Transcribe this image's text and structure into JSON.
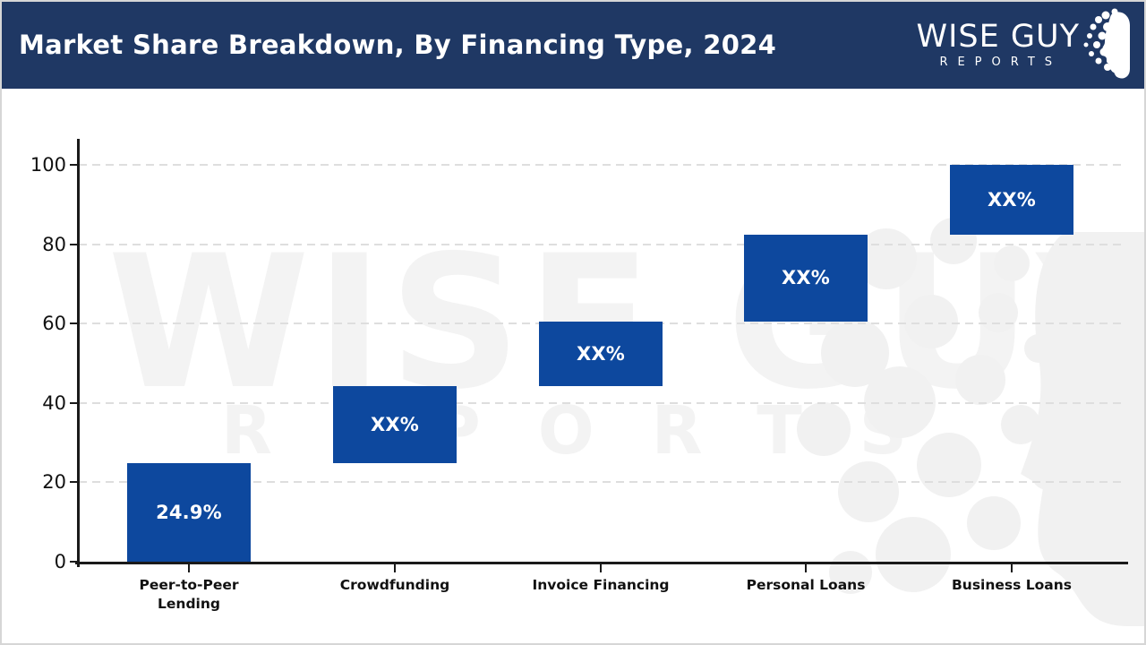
{
  "header": {
    "title": "Market Share Breakdown, By Financing Type, 2024",
    "logo": {
      "line1": "WISE GUY",
      "line2": "REPORTS"
    }
  },
  "watermark": {
    "line1": "WISE GUY",
    "line2": "REPORTS"
  },
  "chart_data": {
    "type": "bar",
    "subtype": "waterfall",
    "title": "Market Share Breakdown, By Financing Type, 2024",
    "categories": [
      "Peer-to-Peer Lending",
      "Crowdfunding",
      "Invoice Financing",
      "Personal Loans",
      "Business Loans"
    ],
    "segments": [
      {
        "category": "Peer-to-Peer Lending",
        "start": 0,
        "end": 24.9,
        "label": "24.9%"
      },
      {
        "category": "Crowdfunding",
        "start": 24.9,
        "end": 44.2,
        "label": "XX%"
      },
      {
        "category": "Invoice Financing",
        "start": 44.2,
        "end": 60.6,
        "label": "XX%"
      },
      {
        "category": "Personal Loans",
        "start": 60.6,
        "end": 82.4,
        "label": "XX%"
      },
      {
        "category": "Business Loans",
        "start": 82.4,
        "end": 100,
        "label": "XX%"
      }
    ],
    "yticks": [
      0,
      20,
      40,
      60,
      80,
      100
    ],
    "ylim": [
      0,
      106
    ],
    "xlabel": "",
    "ylabel": "",
    "legend": "none",
    "grid": "horizontal-dashed"
  },
  "colors": {
    "header_bg": "#1f3864",
    "bar": "#0d489e",
    "grid": "#dedede",
    "axis": "#1a1a1a",
    "watermark": "#f3f3f3",
    "label_on_bar": "#ffffff"
  }
}
